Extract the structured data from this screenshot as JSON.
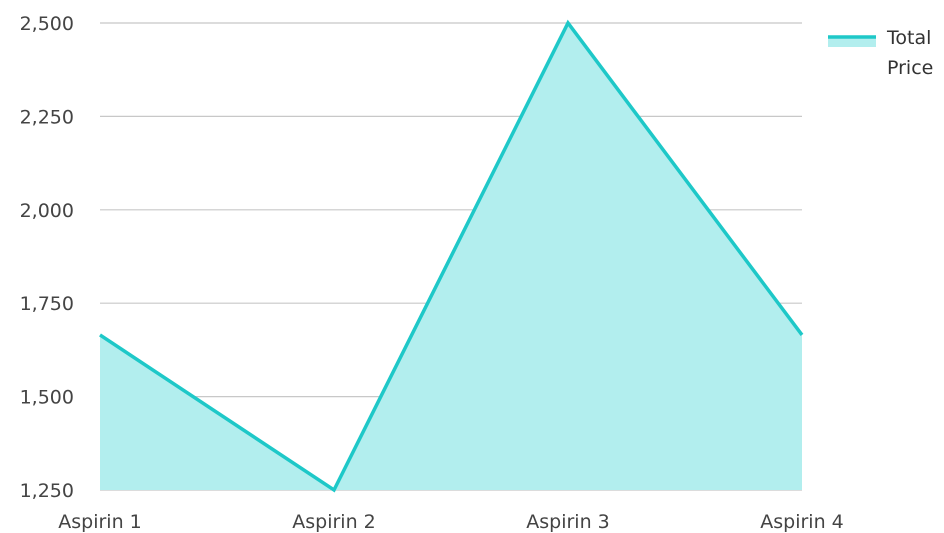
{
  "chart_data": {
    "type": "area",
    "categories": [
      "Aspirin 1",
      "Aspirin 2",
      "Aspirin 3",
      "Aspirin 4"
    ],
    "series": [
      {
        "name": "Total Price",
        "values": [
          1665,
          1250,
          2500,
          1665
        ]
      }
    ],
    "ylim": [
      1250,
      2500
    ],
    "yticks": [
      1250,
      1500,
      1750,
      2000,
      2250,
      2500
    ],
    "ytick_labels": [
      "1,250",
      "1,500",
      "1,750",
      "2,000",
      "2,250",
      "2,500"
    ],
    "grid": true,
    "legend_position": "top-right",
    "legend_lines": [
      "Total",
      "Price"
    ],
    "colors": {
      "line": "#1ec8c8",
      "fill": "#b2eeee",
      "grid": "#c8c8c8"
    }
  }
}
